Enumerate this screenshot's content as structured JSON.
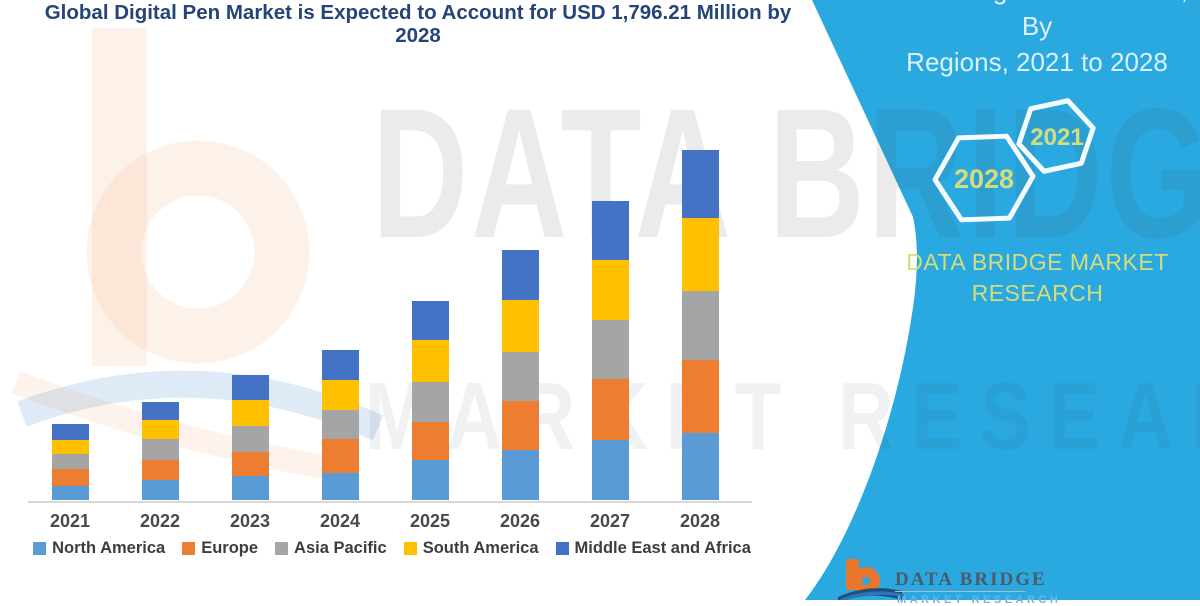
{
  "main_title": {
    "line1": "Global Digital Pen Market is Expected to Account for USD 1,796.21 Million by",
    "line2": "2028"
  },
  "side_panel": {
    "title_line1": "Global Digital Pen Market, By",
    "title_line2": "Regions, 2021 to 2028",
    "hexagon_left_label": "2028",
    "hexagon_right_label": "2021",
    "brand_line1": "DATA BRIDGE MARKET",
    "brand_line2": "RESEARCH",
    "panel_color": "#29a9e0",
    "hex_text_color": "#d6db7d"
  },
  "footer_logo": {
    "name": "DATA BRIDGE",
    "subtitle": "MARKET RESEARCH"
  },
  "watermark": {
    "line1": "DATA BRIDGE",
    "line2": "MARKET RESEARCH"
  },
  "chart_data": {
    "type": "bar",
    "stacked": true,
    "title": "Global Digital Pen Market is Expected to Account for USD 1,796.21 Million by 2028",
    "unit": "USD Million",
    "xlabel": "",
    "ylabel": "",
    "y_axis_visible": false,
    "grid": false,
    "legend_position": "bottom",
    "categories": [
      "2021",
      "2022",
      "2023",
      "2024",
      "2025",
      "2026",
      "2027",
      "2028"
    ],
    "series": [
      {
        "name": "North America",
        "color": "#5b9bd5",
        "values": [
          72,
          103,
          125,
          137,
          205,
          257,
          308,
          345
        ]
      },
      {
        "name": "Europe",
        "color": "#ed7d31",
        "values": [
          90,
          103,
          120,
          176,
          197,
          251,
          312,
          373
        ]
      },
      {
        "name": "Asia Pacific",
        "color": "#a5a5a5",
        "values": [
          73,
          106,
          137,
          149,
          205,
          250,
          304,
          356
        ]
      },
      {
        "name": "South America",
        "color": "#ffc000",
        "values": [
          72,
          99,
          132,
          154,
          216,
          268,
          308,
          372
        ]
      },
      {
        "name": "Middle East and Africa",
        "color": "#4472c4",
        "values": [
          82,
          94,
          125,
          154,
          197,
          257,
          304,
          350.21
        ]
      }
    ],
    "totals": [
      389,
      505,
      639,
      770,
      1020,
      1283,
      1536,
      1796.21
    ],
    "ylim": [
      0,
      1900
    ]
  }
}
